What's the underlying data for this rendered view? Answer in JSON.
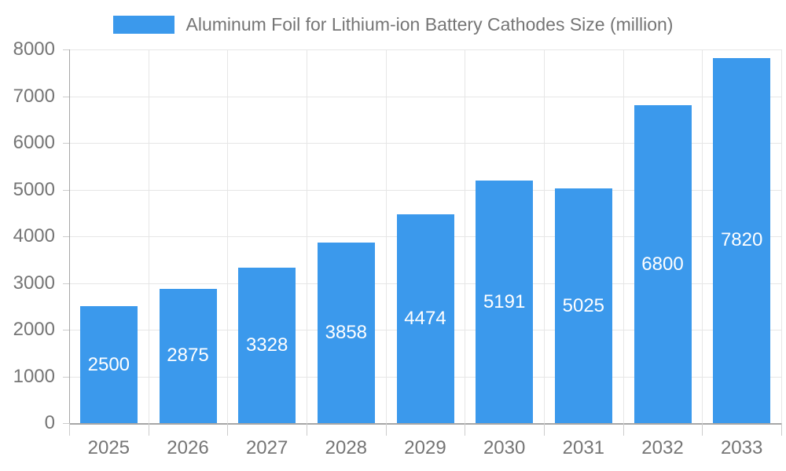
{
  "chart_data": {
    "type": "bar",
    "title": "Aluminum Foil for Lithium-ion Battery Cathodes Size (million)",
    "categories": [
      "2025",
      "2026",
      "2027",
      "2028",
      "2029",
      "2030",
      "2031",
      "2032",
      "2033"
    ],
    "values": [
      2500,
      2875,
      3328,
      3858,
      4474,
      5191,
      5025,
      6800,
      7820
    ],
    "xlabel": "",
    "ylabel": "",
    "ylim": [
      0,
      8000
    ],
    "yticks": [
      0,
      1000,
      2000,
      3000,
      4000,
      5000,
      6000,
      7000,
      8000
    ],
    "grid": true,
    "legend_position": "top-center",
    "bar_color": "#3b99ec",
    "value_label_color": "#ffffff",
    "axis_text_color": "#757575",
    "grid_color": "#e6e6e6",
    "axis_line_color": "#a6a6a6",
    "tick_color": "#cccccc",
    "background_color": "#ffffff"
  }
}
